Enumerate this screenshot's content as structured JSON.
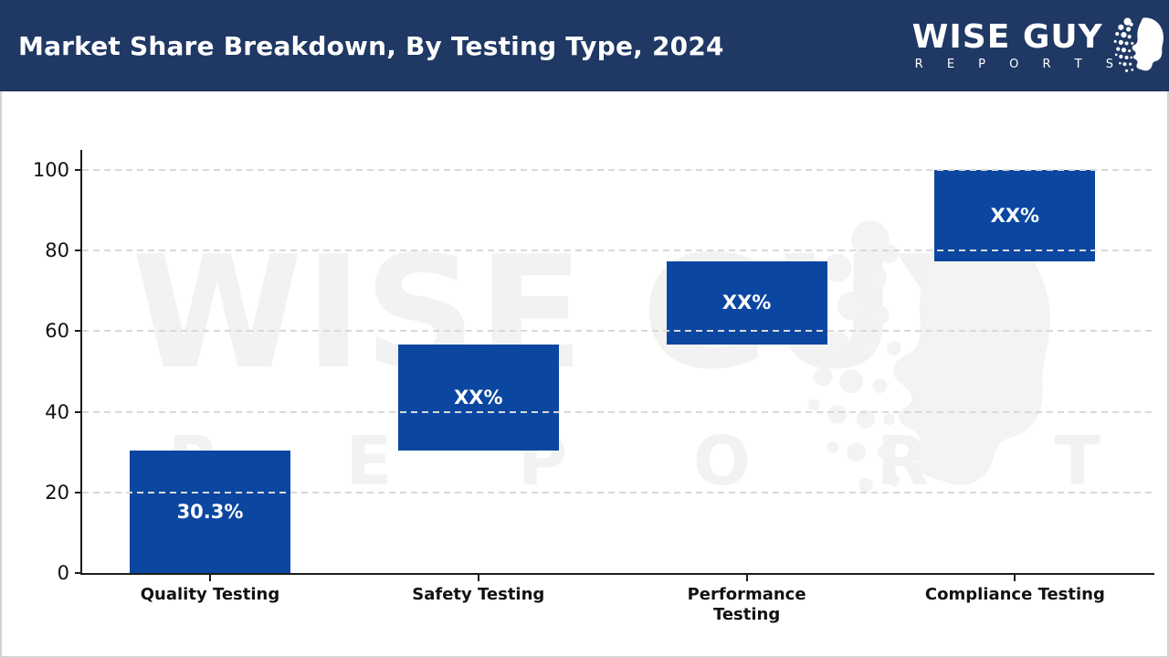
{
  "header": {
    "title": "Market Share Breakdown, By Testing Type, 2024",
    "logo": {
      "name": "WISE GUY",
      "tagline": "R E P O R T S"
    }
  },
  "watermark": {
    "name": "WISE GUY",
    "tagline": "R E P O R T S"
  },
  "colors": {
    "header_bg": "#1f3864",
    "bar": "#0b47a1",
    "bar_label": "#ffffff",
    "grid": "#d9d9d9",
    "axis": "#1c1c1c",
    "text": "#111111",
    "watermark": "#f2f2f2",
    "frame_border": "#d4d4d4"
  },
  "chart_data": {
    "type": "bar",
    "variant": "waterfall",
    "title": "Market Share Breakdown, By Testing Type, 2024",
    "categories": [
      "Quality Testing",
      "Safety Testing",
      "Performance Testing",
      "Compliance Testing"
    ],
    "category_display": [
      [
        "Quality Testing"
      ],
      [
        "Safety Testing"
      ],
      [
        "Performance",
        "Testing"
      ],
      [
        "Compliance Testing"
      ]
    ],
    "segments": [
      {
        "category": "Quality Testing",
        "start": 0,
        "end": 30.3,
        "label": "30.3%"
      },
      {
        "category": "Safety Testing",
        "start": 30.3,
        "end": 56.7,
        "label": "XX%"
      },
      {
        "category": "Performance Testing",
        "start": 56.7,
        "end": 77.4,
        "label": "XX%"
      },
      {
        "category": "Compliance Testing",
        "start": 77.4,
        "end": 100,
        "label": "XX%"
      }
    ],
    "xlabel": "",
    "ylabel": "",
    "ylim": [
      0,
      100
    ],
    "yticks": [
      0,
      20,
      40,
      60,
      80,
      100
    ],
    "grid": "horizontal-dashed-over-bars",
    "legend": "none",
    "bar_color": "#0b47a1",
    "value_label_color": "#ffffff"
  }
}
